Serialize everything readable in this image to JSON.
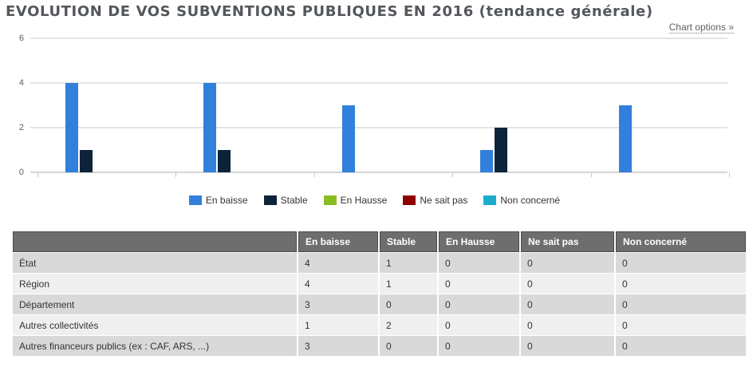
{
  "page": {
    "title": "EVOLUTION DE VOS SUBVENTIONS PUBLIQUES EN 2016 (tendance générale)",
    "chart_options_label": "Chart options »"
  },
  "colors": {
    "en_baisse": "#3180db",
    "stable": "#0d233a",
    "en_hausse": "#8bbc21",
    "ne_sait_pas": "#910000",
    "non_concerne": "#1aadce",
    "table_header_bg": "#6e6e6e",
    "table_row_dark": "#d9d9d9",
    "table_row_light": "#efefef"
  },
  "chart_data": {
    "type": "bar",
    "title": "EVOLUTION DE VOS SUBVENTIONS PUBLIQUES EN 2016 (tendance générale)",
    "categories": [
      "État",
      "Région",
      "Département",
      "Autres collectivités",
      "Autres financeurs publics (ex : CAF, ARS, ...)"
    ],
    "series": [
      {
        "name": "En baisse",
        "color": "#3180db",
        "values": [
          4,
          4,
          3,
          1,
          3
        ]
      },
      {
        "name": "Stable",
        "color": "#0d233a",
        "values": [
          1,
          1,
          0,
          2,
          0
        ]
      },
      {
        "name": "En Hausse",
        "color": "#8bbc21",
        "values": [
          0,
          0,
          0,
          0,
          0
        ]
      },
      {
        "name": "Ne sait pas",
        "color": "#910000",
        "values": [
          0,
          0,
          0,
          0,
          0
        ]
      },
      {
        "name": "Non concerné",
        "color": "#1aadce",
        "values": [
          0,
          0,
          0,
          0,
          0
        ]
      }
    ],
    "xlabel": "",
    "ylabel": "",
    "ylim": [
      0,
      6
    ],
    "yticks": [
      0,
      2,
      4,
      6
    ],
    "grid": true,
    "legend_position": "bottom",
    "x_tick_labels_visible": false
  },
  "table": {
    "columns": [
      "",
      "En baisse",
      "Stable",
      "En Hausse",
      "Ne sait pas",
      "Non concerné"
    ],
    "rows": [
      {
        "label": "État",
        "values": [
          4,
          1,
          0,
          0,
          0
        ]
      },
      {
        "label": "Région",
        "values": [
          4,
          1,
          0,
          0,
          0
        ]
      },
      {
        "label": "Département",
        "values": [
          3,
          0,
          0,
          0,
          0
        ]
      },
      {
        "label": "Autres collectivités",
        "values": [
          1,
          2,
          0,
          0,
          0
        ]
      },
      {
        "label": "Autres financeurs publics (ex : CAF, ARS, ...)",
        "values": [
          3,
          0,
          0,
          0,
          0
        ]
      }
    ]
  }
}
